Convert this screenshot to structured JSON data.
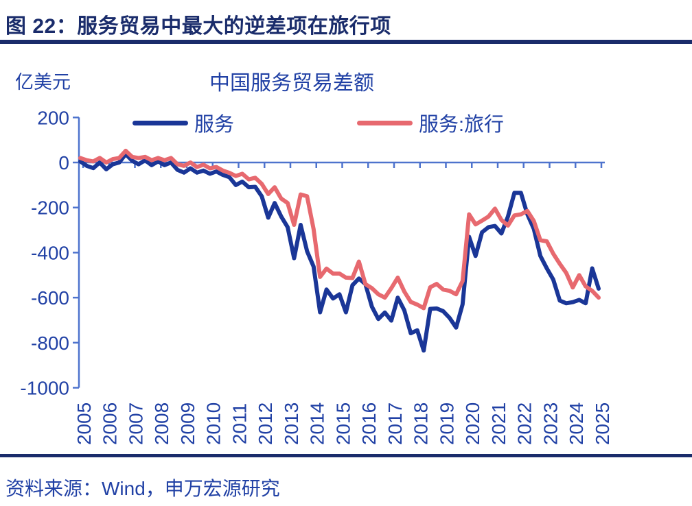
{
  "header": {
    "title": "图 22：服务贸易中最大的逆差项在旅行项"
  },
  "chart": {
    "unit_label": "亿美元",
    "title": "中国服务贸易差额",
    "legend": [
      {
        "label": "服务"
      },
      {
        "label": "服务:旅行"
      }
    ]
  },
  "chart_data": {
    "type": "line",
    "title": "中国服务贸易差额",
    "ylabel": "亿美元",
    "x_start": "2005Q1",
    "x_frequency": "quarterly",
    "xticks": [
      "2005",
      "2006",
      "2007",
      "2008",
      "2009",
      "2010",
      "2011",
      "2012",
      "2013",
      "2014",
      "2015",
      "2016",
      "2017",
      "2018",
      "2019",
      "2020",
      "2021",
      "2022",
      "2023",
      "2024",
      "2025"
    ],
    "yticks": [
      "200",
      "0",
      "-200",
      "-400",
      "-600",
      "-800",
      "-1000"
    ],
    "ytick_values": [
      200,
      0,
      -200,
      -400,
      -600,
      -800,
      -1000
    ],
    "ylim": [
      -1000,
      200
    ],
    "grid": false,
    "legend_position": "top",
    "series": [
      {
        "name": "服务",
        "color": "#1a3697",
        "values": [
          5,
          -15,
          -25,
          0,
          -30,
          -8,
          0,
          37,
          8,
          -8,
          10,
          -12,
          5,
          -12,
          0,
          -33,
          -45,
          -26,
          -45,
          -36,
          -50,
          -40,
          -55,
          -65,
          -100,
          -85,
          -110,
          -108,
          -150,
          -245,
          -180,
          -240,
          -287,
          -425,
          -277,
          -394,
          -462,
          -665,
          -564,
          -604,
          -585,
          -665,
          -545,
          -515,
          -540,
          -640,
          -695,
          -666,
          -702,
          -600,
          -656,
          -758,
          -745,
          -835,
          -650,
          -648,
          -660,
          -690,
          -733,
          -630,
          -330,
          -415,
          -310,
          -287,
          -282,
          -315,
          -240,
          -135,
          -135,
          -230,
          -295,
          -415,
          -470,
          -520,
          -613,
          -625,
          -620,
          -610,
          -625,
          -470,
          -560
        ]
      },
      {
        "name": "服务:旅行",
        "color": "#e7696f",
        "values": [
          20,
          10,
          5,
          20,
          0,
          15,
          20,
          52,
          25,
          20,
          25,
          10,
          20,
          10,
          20,
          -8,
          -15,
          0,
          -20,
          -10,
          -26,
          -20,
          -36,
          -46,
          -60,
          -50,
          -75,
          -68,
          -95,
          -140,
          -110,
          -160,
          -180,
          -277,
          -142,
          -150,
          -296,
          -508,
          -471,
          -493,
          -493,
          -511,
          -513,
          -440,
          -540,
          -558,
          -585,
          -600,
          -558,
          -511,
          -573,
          -619,
          -631,
          -647,
          -554,
          -539,
          -564,
          -570,
          -585,
          -527,
          -230,
          -275,
          -258,
          -240,
          -205,
          -255,
          -280,
          -235,
          -230,
          -215,
          -260,
          -345,
          -350,
          -405,
          -450,
          -490,
          -555,
          -500,
          -550,
          -570,
          -600
        ]
      }
    ]
  },
  "source": {
    "text": "资料来源：Wind，申万宏源研究"
  },
  "colors": {
    "header_navy": "#1a2c6b",
    "label_blue": "#2141a5",
    "axis_blue": "#4e73cd",
    "series_blue": "#1a3697",
    "series_red": "#e7696f"
  }
}
